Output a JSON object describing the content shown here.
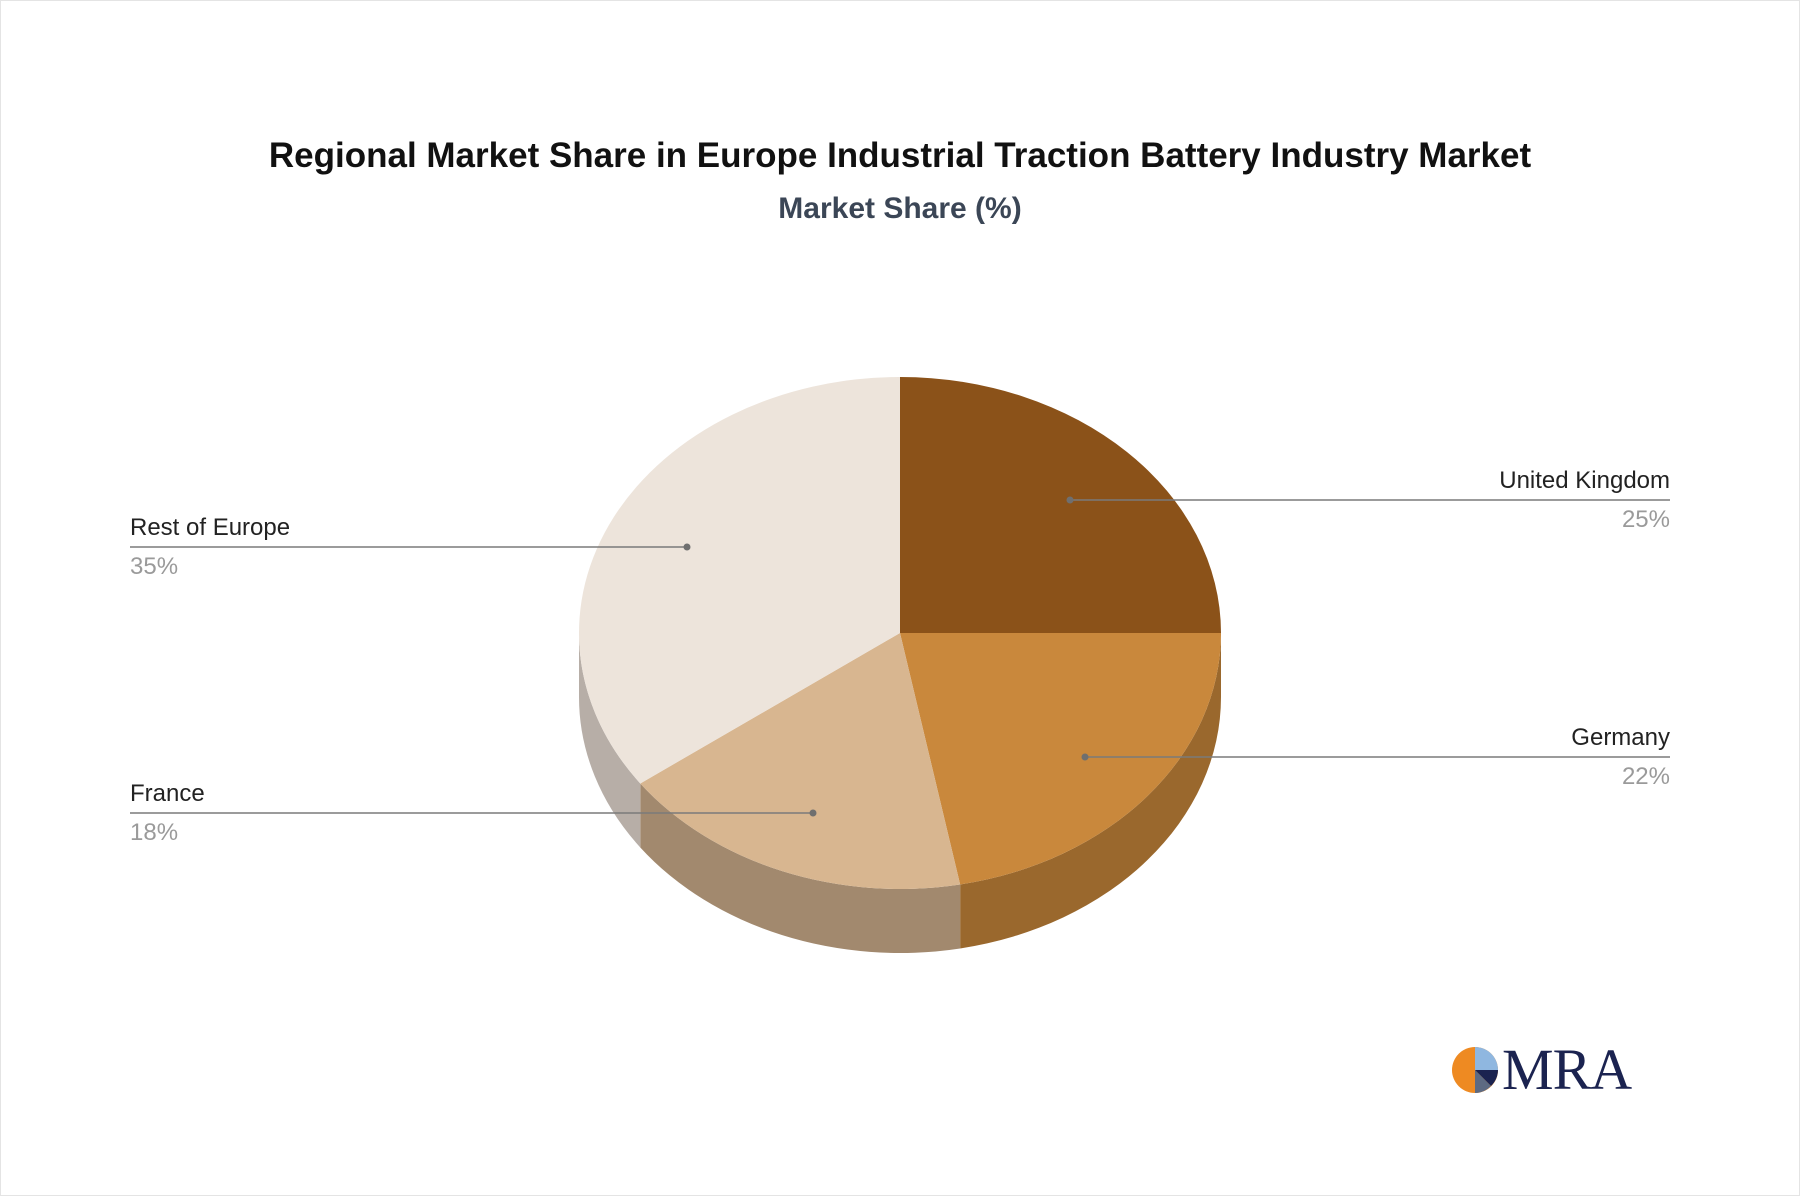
{
  "title": "Regional Market Share in Europe Industrial Traction Battery Industry Market",
  "subtitle": "Market Share (%)",
  "logo": {
    "text": "MRA"
  },
  "chart_data": {
    "type": "pie",
    "title": "Regional Market Share in Europe Industrial Traction Battery Industry Market",
    "subtitle": "Market Share (%)",
    "style": "3d",
    "start": "12 o'clock, clockwise",
    "slices": [
      {
        "label": "United Kingdom",
        "value": 25,
        "display": "25%",
        "color": "#8b5219",
        "side_color": "#6e4114"
      },
      {
        "label": "Germany",
        "value": 22,
        "display": "22%",
        "color": "#c9883c",
        "side_color": "#9a682d"
      },
      {
        "label": "France",
        "value": 18,
        "display": "18%",
        "color": "#d8b690",
        "side_color": "#a2896e"
      },
      {
        "label": "Rest of Europe",
        "value": 35,
        "display": "35%",
        "color": "#ede4db",
        "side_color": "#b7aea7"
      }
    ]
  }
}
